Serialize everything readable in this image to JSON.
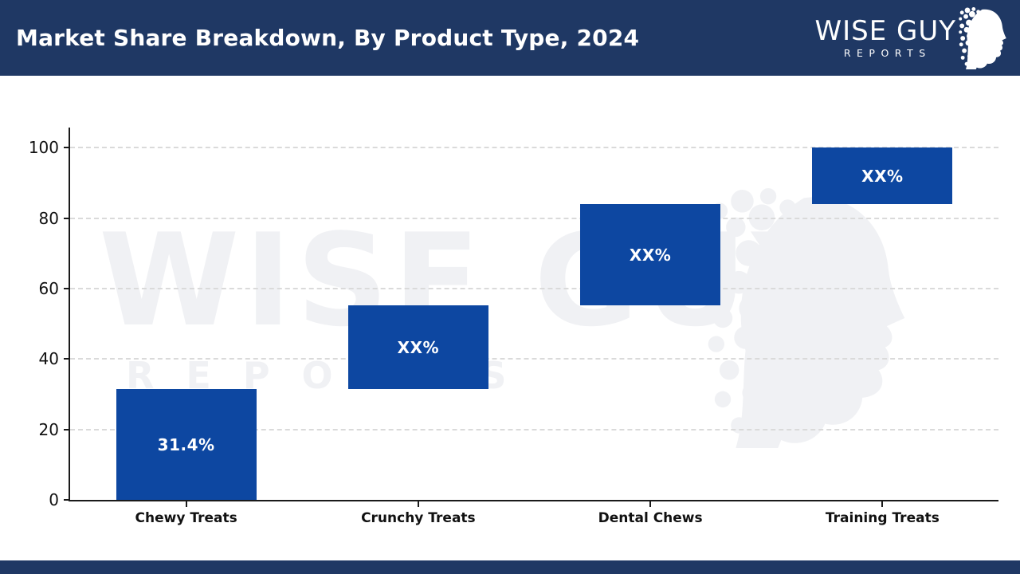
{
  "header": {
    "title": "Market Share Breakdown, By Product Type, 2024",
    "bg_color": "#1f3864",
    "logo": {
      "line1": "WISE GUY",
      "line2": "REPORTS"
    }
  },
  "watermark": {
    "line1": "WISE GUY",
    "line2": "REPORTS"
  },
  "footer": {
    "bg_color": "#1f3864"
  },
  "colors": {
    "header_bg": "#1f3864",
    "bar": "#0d47a1",
    "axis": "#1a1a1a",
    "gridline": "#dadada",
    "watermark": "#f0f1f4",
    "bar_label": "#ffffff"
  },
  "chart_data": {
    "type": "bar",
    "variant": "waterfall",
    "title": "Market Share Breakdown, By Product Type, 2024",
    "categories": [
      "Chewy Treats",
      "Crunchy Treats",
      "Dental Chews",
      "Training Treats"
    ],
    "segments": [
      {
        "category": "Chewy Treats",
        "start": 0,
        "end": 31.4,
        "label": "31.4%"
      },
      {
        "category": "Crunchy Treats",
        "start": 31.4,
        "end": 55.2,
        "label": "XX%"
      },
      {
        "category": "Dental Chews",
        "start": 55.2,
        "end": 84,
        "label": "XX%"
      },
      {
        "category": "Training Treats",
        "start": 84,
        "end": 100,
        "label": "XX%"
      }
    ],
    "yticks": [
      0,
      20,
      40,
      60,
      80,
      100
    ],
    "ylim": [
      0,
      108
    ],
    "xlabel": "",
    "ylabel": "",
    "legend": null,
    "grid": {
      "horizontal": true,
      "style": "dashed"
    },
    "bar_color": "#0d47a1",
    "label_color": "#ffffff"
  }
}
